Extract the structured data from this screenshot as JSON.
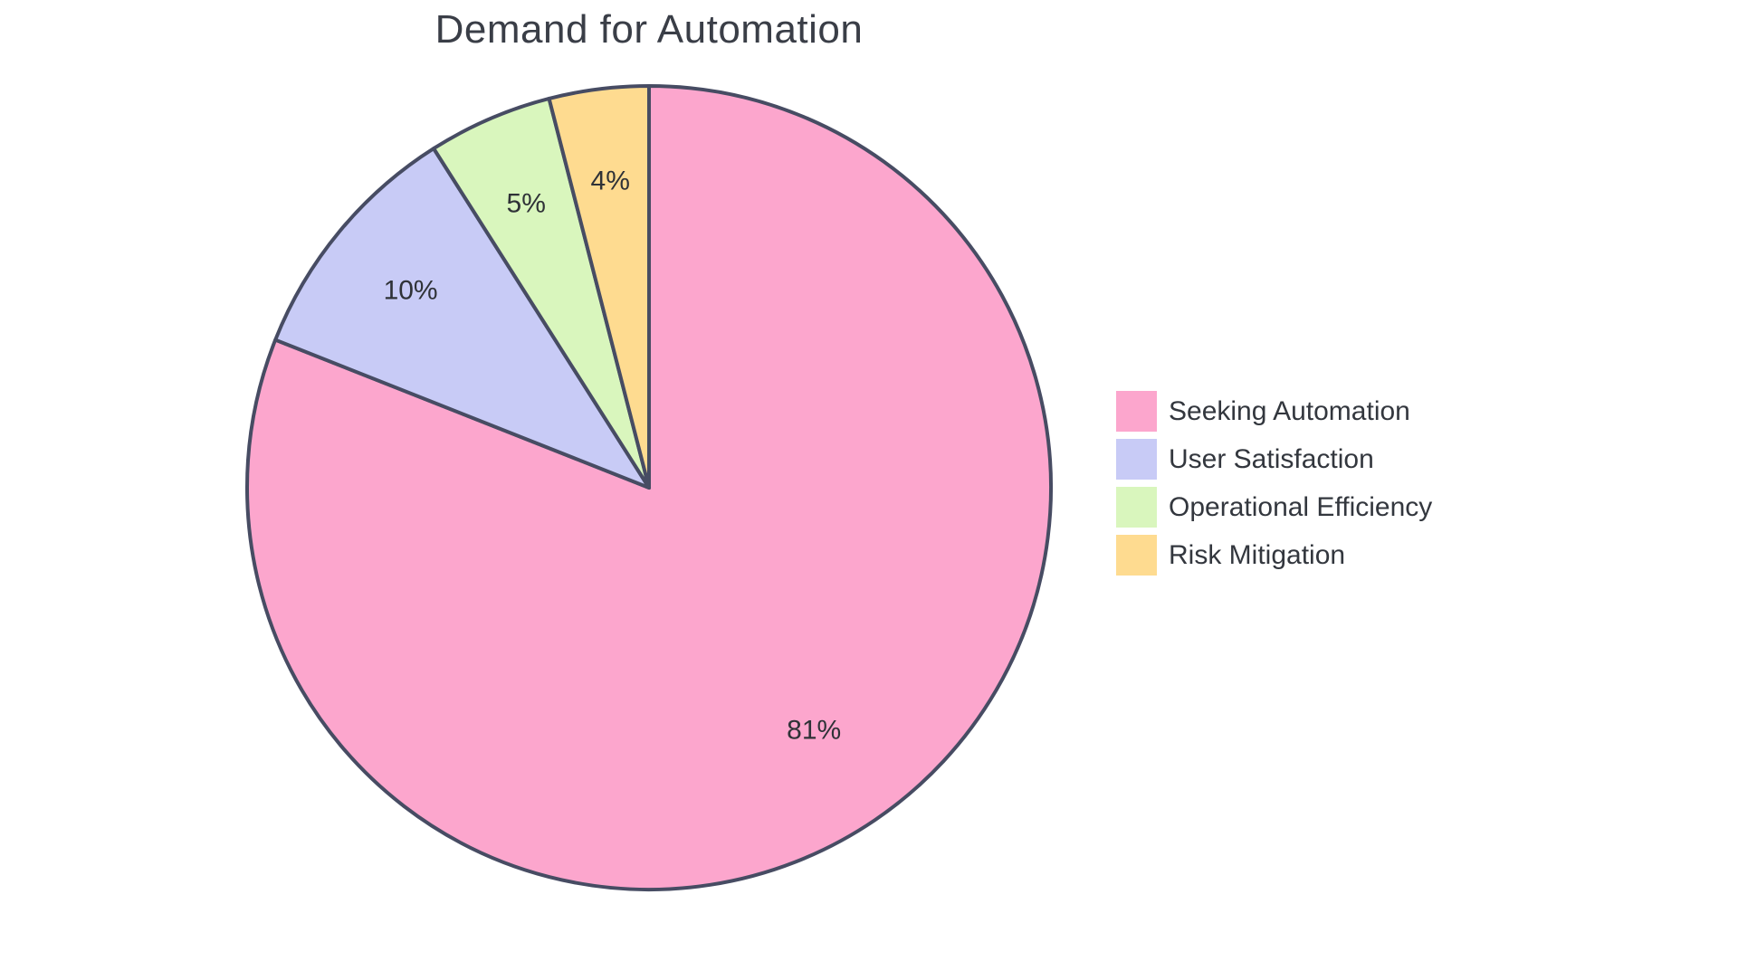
{
  "chart_data": {
    "type": "pie",
    "title": "Demand for Automation",
    "labels": [
      "Seeking Automation",
      "User Satisfaction",
      "Operational Efficiency",
      "Risk Mitigation"
    ],
    "values": [
      81,
      10,
      5,
      4
    ],
    "percent_labels": [
      "81%",
      "10%",
      "5%",
      "4%"
    ],
    "colors": [
      "#FCA6CD",
      "#C8CBF6",
      "#D9F6BD",
      "#FEDB90"
    ],
    "slice_border_color": "#474C63",
    "percent_label_color": "#2F3237",
    "title_color": "#3A3E47",
    "legend_text_color": "#33373E",
    "start": "top",
    "direction": "clockwise",
    "legend_position": "right",
    "background_color": "#FFFFFF"
  }
}
